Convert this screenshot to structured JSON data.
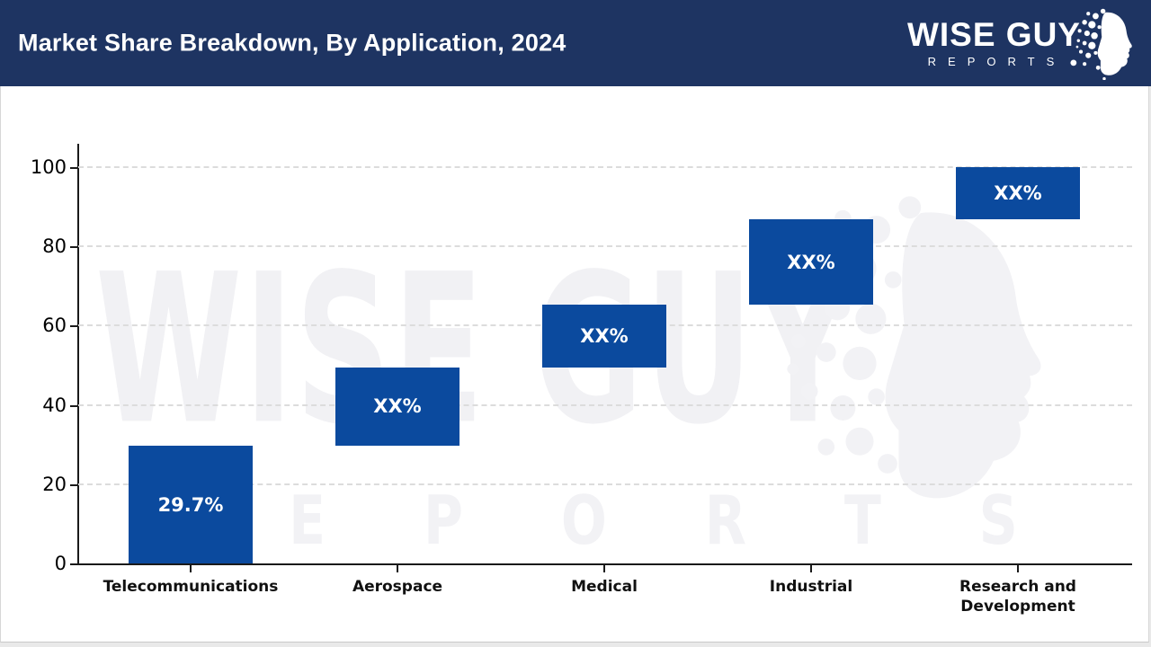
{
  "header": {
    "title": "Market Share Breakdown, By Application, 2024",
    "logo": {
      "line1": "WISE GUY",
      "line2": "REPORTS"
    }
  },
  "watermark": {
    "line1": "WISE GUY",
    "line2": "R E P O R T S"
  },
  "chart_data": {
    "type": "bar",
    "subtype": "waterfall",
    "title": "Market Share Breakdown, By Application, 2024",
    "categories": [
      "Telecommunications",
      "Aerospace",
      "Medical",
      "Industrial",
      "Research and Development"
    ],
    "segments": [
      {
        "category": "Telecommunications",
        "start": 0,
        "end": 29.7,
        "label": "29.7%"
      },
      {
        "category": "Aerospace",
        "start": 29.7,
        "end": 49.5,
        "label": "XX%"
      },
      {
        "category": "Medical",
        "start": 49.5,
        "end": 65.3,
        "label": "XX%"
      },
      {
        "category": "Industrial",
        "start": 65.3,
        "end": 86.8,
        "label": "XX%"
      },
      {
        "category": "Research and Development",
        "start": 86.8,
        "end": 100,
        "label": "XX%"
      }
    ],
    "xlabel": "",
    "ylabel": "",
    "ylim": [
      0,
      100
    ],
    "yticks": [
      0,
      20,
      40,
      60,
      80,
      100
    ],
    "grid": "horizontal-dashed",
    "legend": "none",
    "bar_color": "#0b4a9e",
    "bar_label_color": "#ffffff"
  },
  "colors": {
    "header_bg": "#1e3462",
    "bar": "#0b4a9e",
    "axis": "#1a1a1a",
    "grid": "#dcdcdc",
    "watermark": "#f1f1f4"
  }
}
